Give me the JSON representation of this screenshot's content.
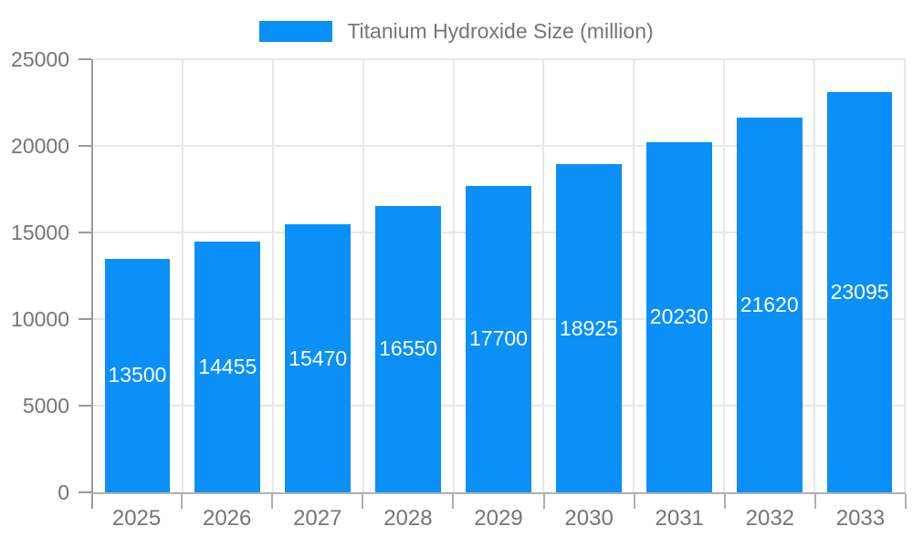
{
  "chart_data": {
    "type": "bar",
    "title": "Titanium Hydroxide Size (million)",
    "legend_position": "top",
    "legend_entries": [
      "Titanium Hydroxide Size (million)"
    ],
    "categories": [
      "2025",
      "2026",
      "2027",
      "2028",
      "2029",
      "2030",
      "2031",
      "2032",
      "2033"
    ],
    "values": [
      13500,
      14455,
      15470,
      16550,
      17700,
      18925,
      20230,
      21620,
      23095
    ],
    "xlabel": "",
    "ylabel": "",
    "ylim": [
      0,
      25000
    ],
    "ytick_interval": 5000,
    "yticks": [
      "0",
      "5000",
      "10000",
      "15000",
      "20000",
      "25000"
    ],
    "grid": true,
    "bar_value_labels_inside": true
  },
  "colors": {
    "bar": "#0a90f8",
    "grid": "#e8e8e8",
    "axis": "#9a9a9a",
    "baseline": "#b0b0b0",
    "tick_text": "#757575",
    "value_text": "#ffffff",
    "background": "#ffffff"
  }
}
